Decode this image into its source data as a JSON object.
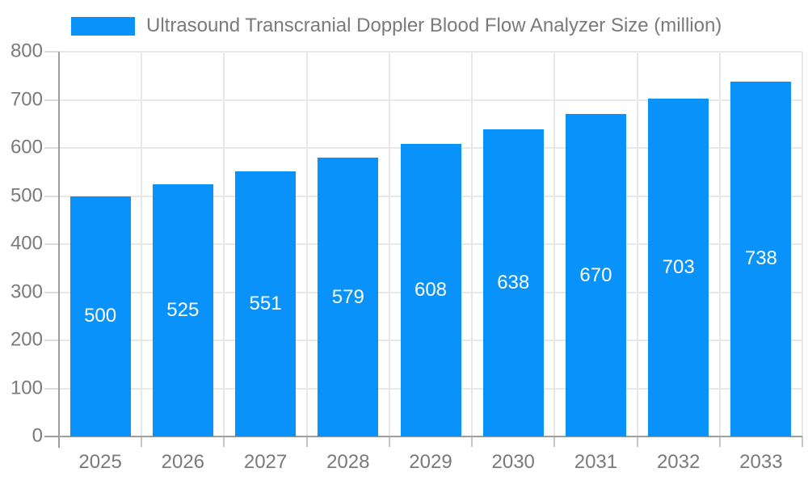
{
  "legend": {
    "label": "Ultrasound Transcranial Doppler Blood Flow Analyzer Size (million)"
  },
  "chart_data": {
    "type": "bar",
    "title": "Ultrasound Transcranial Doppler Blood Flow Analyzer Size (million)",
    "categories": [
      "2025",
      "2026",
      "2027",
      "2028",
      "2029",
      "2030",
      "2031",
      "2032",
      "2033"
    ],
    "values": [
      500,
      525,
      551,
      579,
      608,
      638,
      670,
      703,
      738
    ],
    "xlabel": "",
    "ylabel": "",
    "ylim": [
      0,
      800
    ],
    "yticks": [
      0,
      100,
      200,
      300,
      400,
      500,
      600,
      700,
      800
    ],
    "grid": true,
    "legend_position": "top-left",
    "colors": {
      "bar": "#0992fa",
      "value_label": "#ffffff",
      "axis_text": "#7a7a7a",
      "grid_line": "#e8e8e8",
      "tick_left": "#dcdcdc",
      "tick_bottom": "#c6c6c6",
      "axis_line": "#9e9e9e"
    }
  }
}
